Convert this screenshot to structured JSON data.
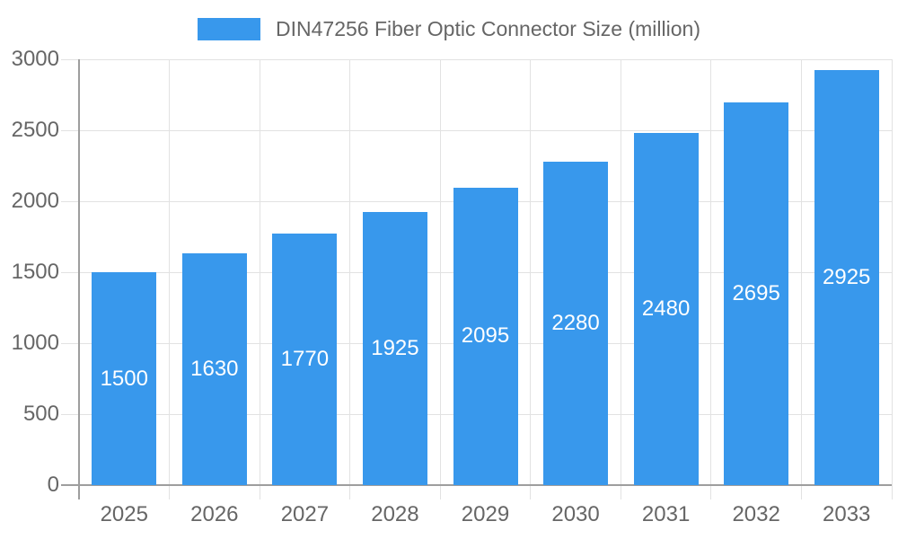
{
  "chart_data": {
    "type": "bar",
    "title": "DIN47256 Fiber Optic Connector Size (million)",
    "legend_position": "top",
    "categories": [
      "2025",
      "2026",
      "2027",
      "2028",
      "2029",
      "2030",
      "2031",
      "2032",
      "2033"
    ],
    "series": [
      {
        "name": "DIN47256 Fiber Optic Connector Size (million)",
        "values": [
          1500,
          1630,
          1770,
          1925,
          2095,
          2280,
          2480,
          2695,
          2925
        ]
      }
    ],
    "xlabel": "",
    "ylabel": "",
    "ylim": [
      0,
      3000
    ],
    "yticks": [
      0,
      500,
      1000,
      1500,
      2000,
      2500,
      3000
    ],
    "grid": true,
    "bar_labels_inside": true,
    "colors": {
      "bar": "#3898EC",
      "bar_label": "#FFFFFF",
      "axis": "#9E9E9E",
      "grid": "#E2E2E2",
      "text": "#666666",
      "background": "#FFFFFF"
    }
  }
}
